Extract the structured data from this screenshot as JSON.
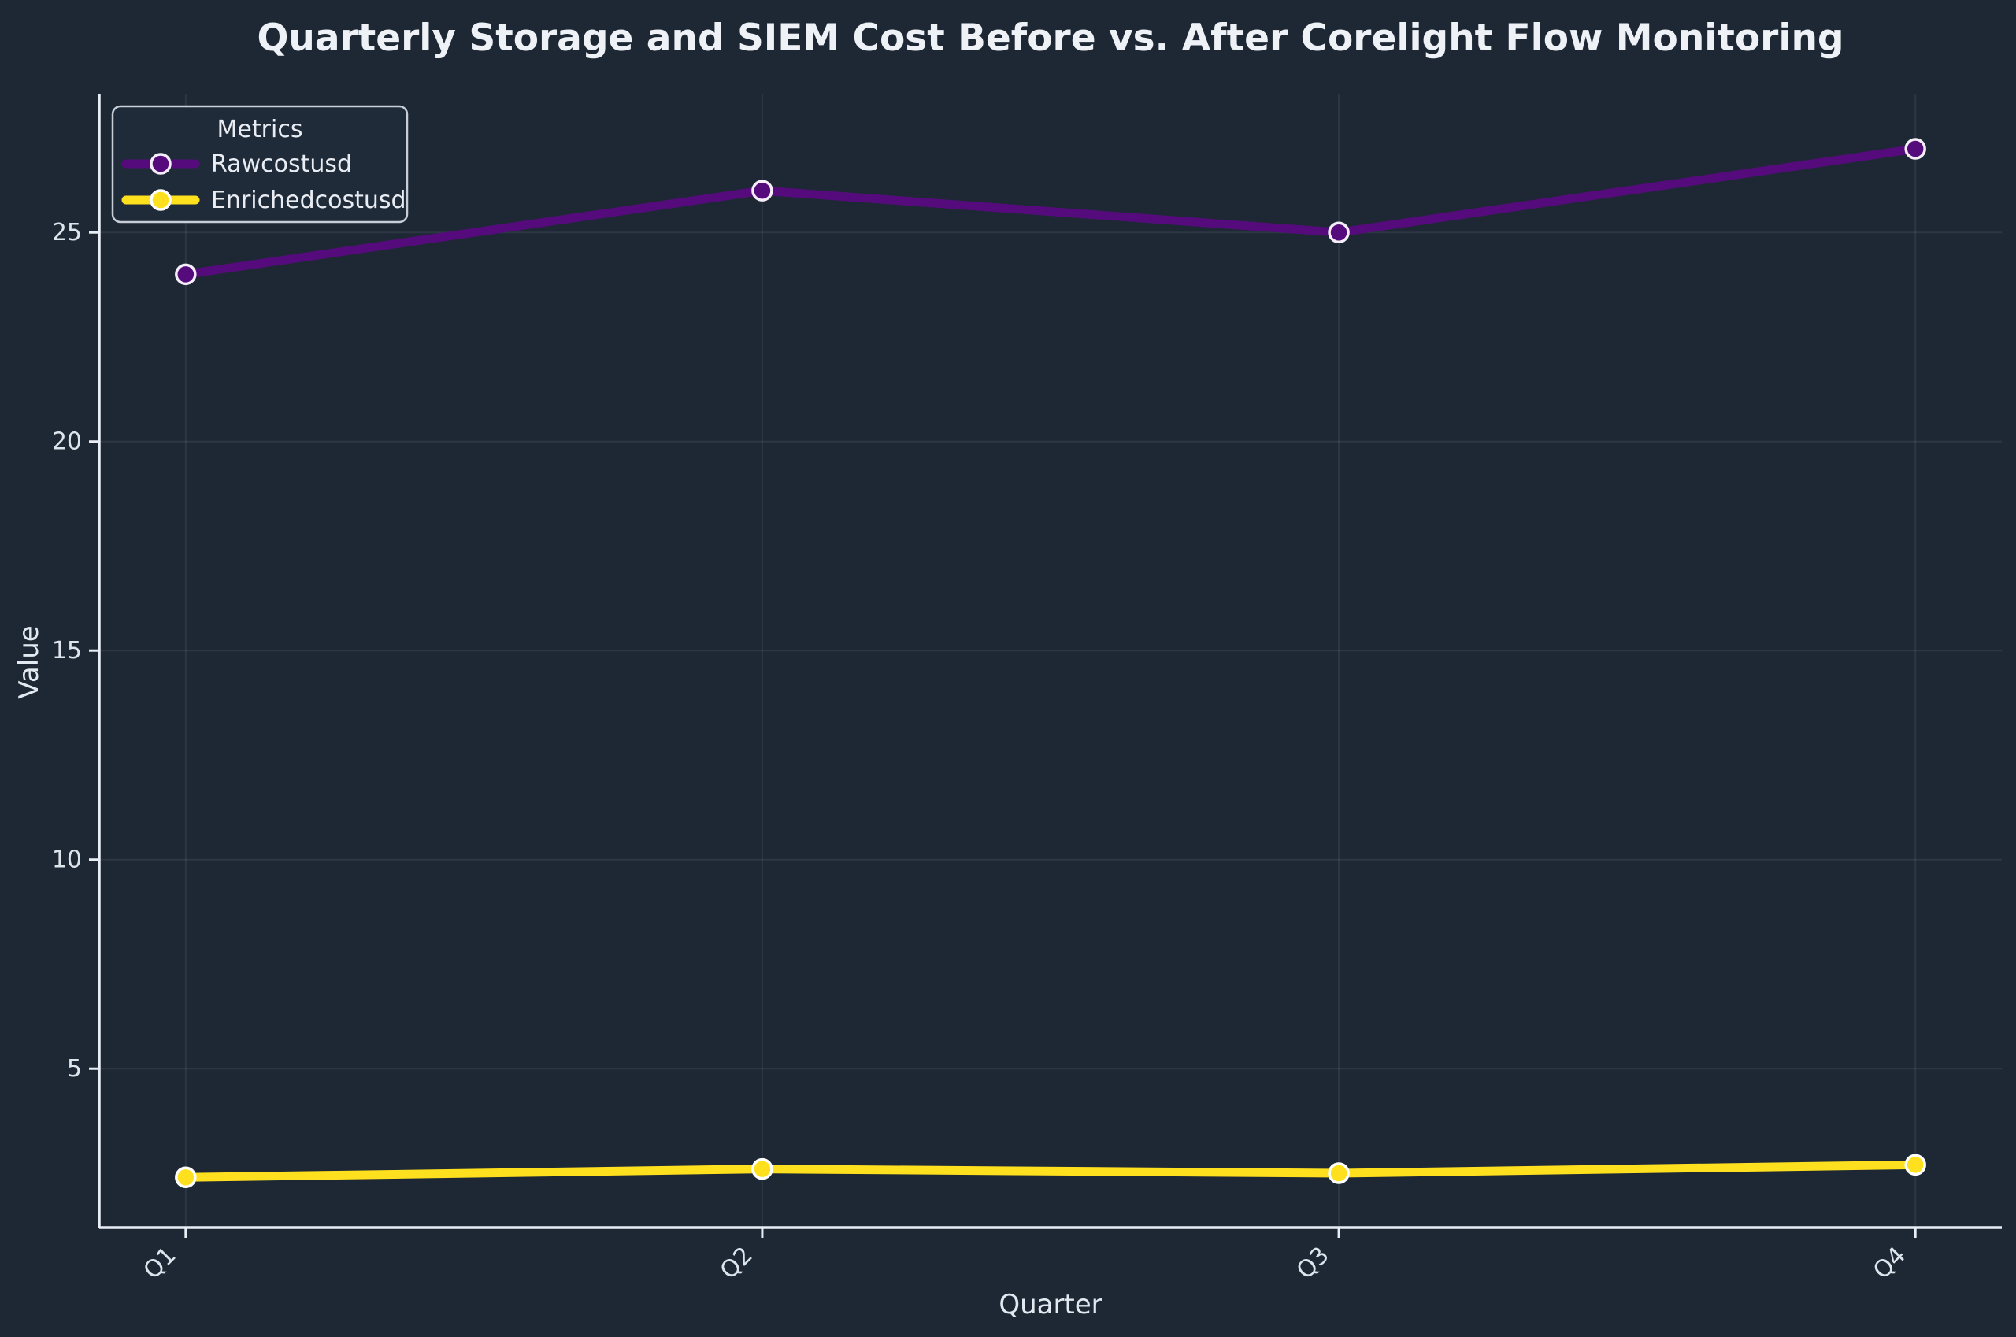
{
  "figure": {
    "background_color": "#1e2835",
    "spine_color": "#e9eef4",
    "grid_color": "rgba(255,255,255,0.07)",
    "text_color": "#e3e9f0"
  },
  "chart_data": {
    "type": "line",
    "title": "Quarterly Storage and SIEM Cost Before vs. After Corelight Flow Monitoring",
    "xlabel": "Quarter",
    "ylabel": "Value",
    "categories": [
      "Q1",
      "Q2",
      "Q3",
      "Q4"
    ],
    "series": [
      {
        "name": "Rawcostusd",
        "values": [
          24,
          26,
          25,
          27
        ],
        "color": "#560b7d",
        "marker": "open-circle",
        "marker_edge_color": "#f3eef8"
      },
      {
        "name": "Enrichedcostusd",
        "values": [
          2.4,
          2.6,
          2.5,
          2.7
        ],
        "color": "#ffe01f",
        "marker": "filled-circle",
        "marker_edge_color": "#ffffff"
      }
    ],
    "yticks": [
      5,
      10,
      15,
      20,
      25
    ],
    "ylim": [
      1.2,
      28.3
    ],
    "grid": true,
    "legend": {
      "title": "Metrics",
      "position": "upper-left"
    }
  }
}
